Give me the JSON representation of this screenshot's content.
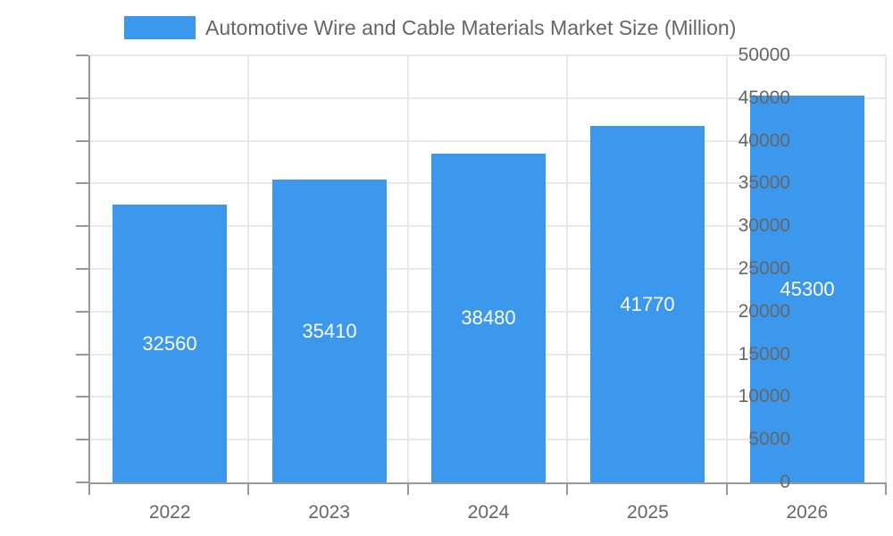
{
  "legend": {
    "label": "Automotive Wire and Cable Materials Market Size (Million)"
  },
  "chart_data": {
    "type": "bar",
    "title": "Automotive Wire and Cable Materials Market Size (Million)",
    "categories": [
      "2022",
      "2023",
      "2024",
      "2025",
      "2026"
    ],
    "values": [
      32560,
      35410,
      38480,
      41770,
      45300
    ],
    "xlabel": "",
    "ylabel": "",
    "ylim": [
      0,
      50000
    ],
    "ytick_step": 5000,
    "grid": true,
    "legend_position": "top",
    "data_labels": "inside-center"
  },
  "colors": {
    "bar": "#3B98EC",
    "data_label_text": "#ffffff",
    "axis_line": "#999999",
    "gridline": "#e8e8e8",
    "axis_text": "#666666",
    "legend_text": "#666666",
    "background": "#ffffff"
  }
}
